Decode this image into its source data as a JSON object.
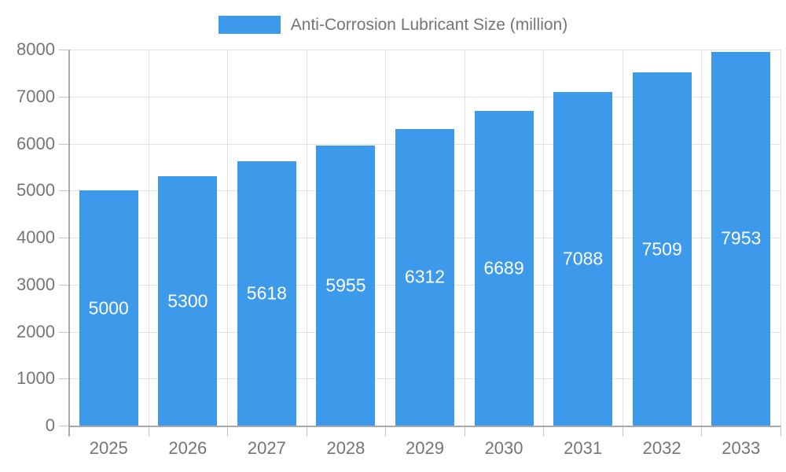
{
  "chart_data": {
    "type": "bar",
    "title": "Anti-Corrosion Lubricant Size (million)",
    "categories": [
      "2025",
      "2026",
      "2027",
      "2028",
      "2029",
      "2030",
      "2031",
      "2032",
      "2033"
    ],
    "values": [
      5000,
      5300,
      5618,
      5955,
      6312,
      6689,
      7088,
      7509,
      7953
    ],
    "xlabel": "",
    "ylabel": "",
    "ylim": [
      0,
      8000
    ],
    "yticks": [
      0,
      1000,
      2000,
      3000,
      4000,
      5000,
      6000,
      7000,
      8000
    ],
    "grid": true,
    "legend_position": "top",
    "value_labels": "centered-inside-bars",
    "colors": {
      "bar": "#3D9AEA",
      "axis_text": "#757575",
      "title_text": "#757575",
      "gridline": "#e2e2e2",
      "axis_line": "#a9a9a9",
      "tick": "#c4c4c4",
      "value_label": "#ffffff",
      "background": "#ffffff"
    }
  }
}
